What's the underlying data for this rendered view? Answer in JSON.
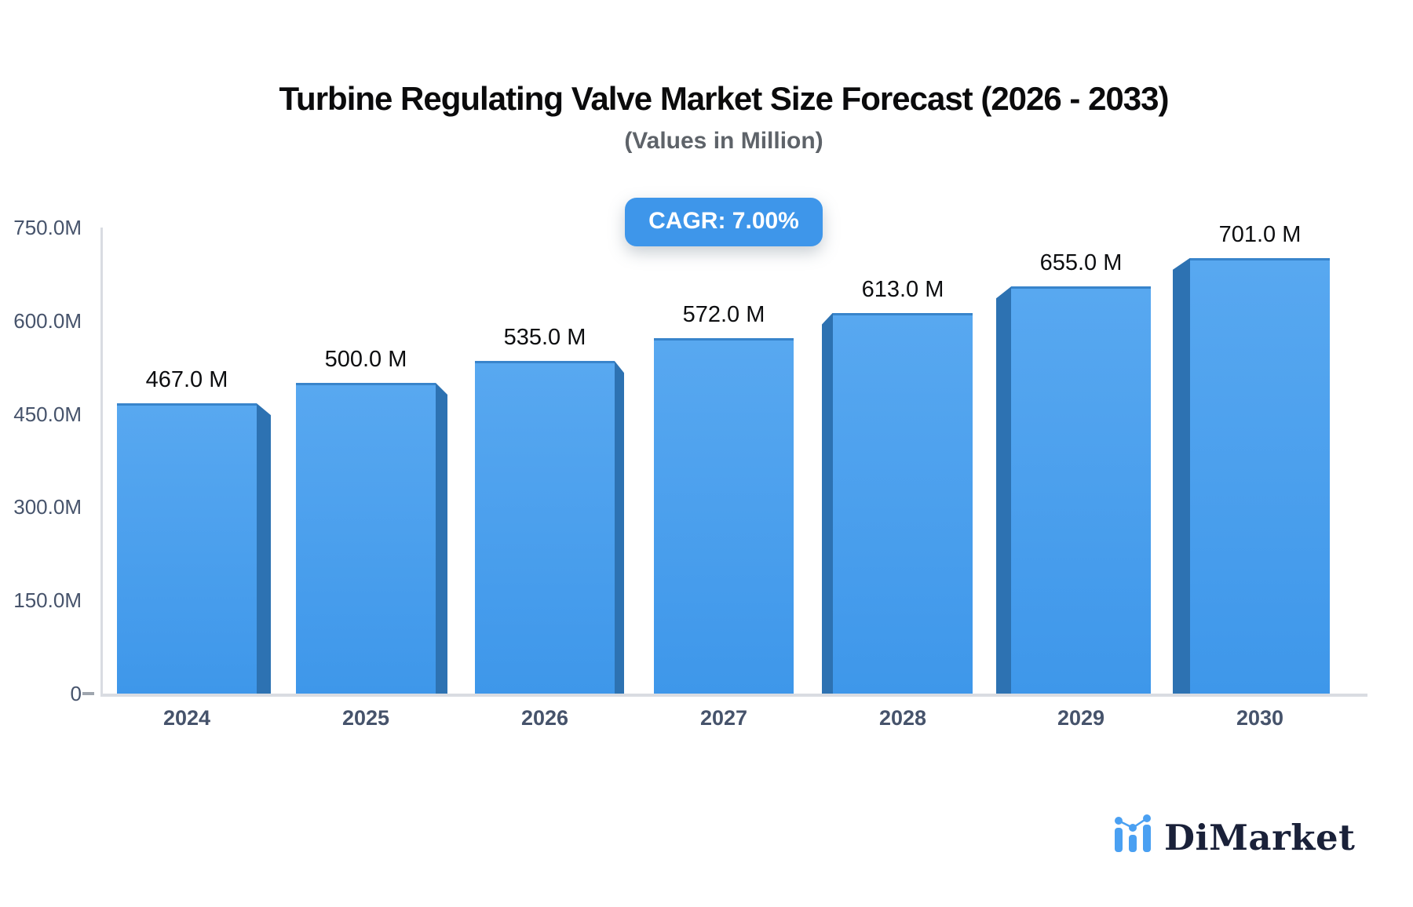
{
  "header": {
    "title": "Turbine Regulating Valve Market Size Forecast (2026 - 2033)",
    "subtitle": "(Values in Million)",
    "cagr_badge": "CAGR: 7.00%"
  },
  "chart_data": {
    "type": "bar",
    "title": "Turbine Regulating Valve Market Size Forecast (2026 - 2033)",
    "subtitle": "(Values in Million)",
    "cagr_label": "CAGR: 7.00%",
    "cagr_percent": 7.0,
    "unit": "Million",
    "categories": [
      "2024",
      "2025",
      "2026",
      "2027",
      "2028",
      "2029",
      "2030"
    ],
    "values": [
      467,
      500,
      535,
      572,
      613,
      655,
      701
    ],
    "value_labels": [
      "467.0 M",
      "500.0 M",
      "535.0 M",
      "572.0 M",
      "613.0 M",
      "655.0 M",
      "701.0 M"
    ],
    "y_ticks": [
      {
        "label": "0",
        "value": 0
      },
      {
        "label": "150.0M",
        "value": 150
      },
      {
        "label": "300.0M",
        "value": 300
      },
      {
        "label": "450.0M",
        "value": 450
      },
      {
        "label": "600.0M",
        "value": 600
      },
      {
        "label": "750.0M",
        "value": 750
      }
    ],
    "ylim": [
      0,
      750
    ],
    "grid": false,
    "legend": false,
    "colors": {
      "bar_front_top": "#58a8f0",
      "bar_front_bottom": "#3e97ea",
      "bar_top_edge": "#3884cb",
      "bar_side": "#2d72b2",
      "axis_line": "#d9dce2",
      "tick_dash": "#9fa5ae",
      "tick_text": "#46536b",
      "value_text": "#0d0e10",
      "badge_bg": "#3e96ea",
      "badge_text": "#ffffff"
    }
  },
  "footer": {
    "logo_text": "DiMarket",
    "logo_icon": "mini-bar-chart-icon",
    "logo_blue": "#4aa0f2",
    "logo_navy": "#1a2139"
  }
}
